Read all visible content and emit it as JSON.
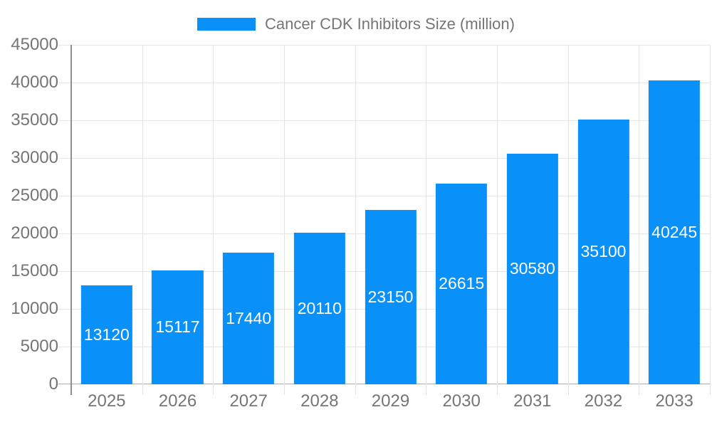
{
  "legend": {
    "label": "Cancer CDK Inhibitors Size (million)"
  },
  "colors": {
    "bar": "#0990f9",
    "bar_value_text": "#ffffff",
    "axis_text": "#757575",
    "grid_line": "#e6e6e6",
    "axis_line": "#8f8f8f",
    "baseline": "#ababab",
    "background": "#ffffff"
  },
  "chart_data": {
    "type": "bar",
    "title": "Cancer CDK Inhibitors Size (million)",
    "categories": [
      "2025",
      "2026",
      "2027",
      "2028",
      "2029",
      "2030",
      "2031",
      "2032",
      "2033"
    ],
    "series": [
      {
        "name": "Cancer CDK Inhibitors Size (million)",
        "values": [
          13120,
          15117,
          17440,
          20110,
          23150,
          26615,
          30580,
          35100,
          40245
        ],
        "color": "#0990f9"
      }
    ],
    "data_labels": [
      "13120",
      "15117",
      "17440",
      "20110",
      "23150",
      "26615",
      "30580",
      "35100",
      "40245"
    ],
    "xlabel": "",
    "ylabel": "",
    "ylim": [
      0,
      45000
    ],
    "ytick_step": 5000,
    "yticks": [
      0,
      5000,
      10000,
      15000,
      20000,
      25000,
      30000,
      35000,
      40000,
      45000
    ],
    "grid": true,
    "legend_position": "top",
    "data_label_position": "inside-center"
  }
}
